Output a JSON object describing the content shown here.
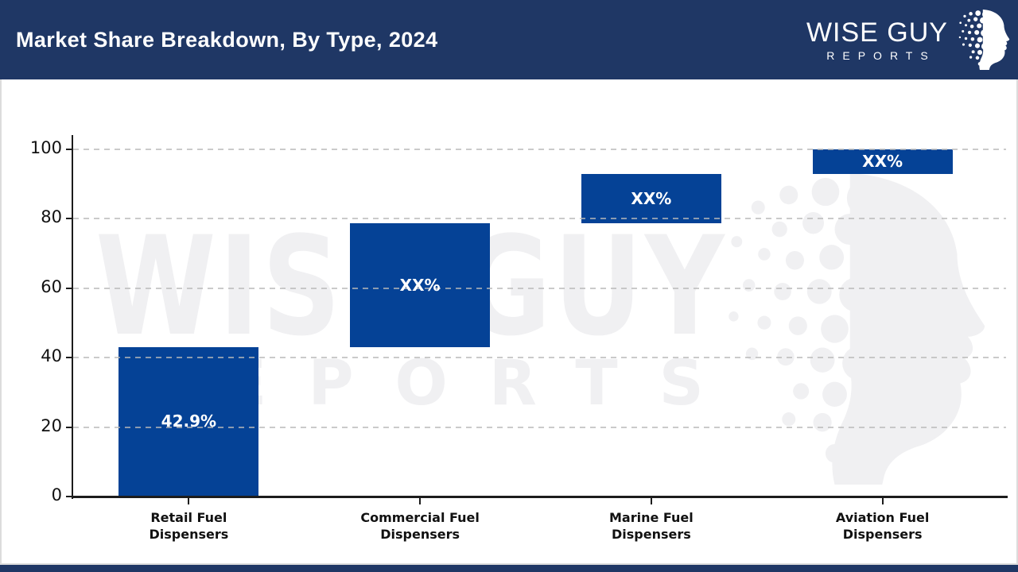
{
  "header": {
    "title": "Market Share Breakdown, By Type, 2024",
    "logo": {
      "name": "WISE GUY",
      "tagline": "REPORTS"
    }
  },
  "watermark": {
    "line1": "WISE GUY",
    "line2": "REPORTS"
  },
  "colors": {
    "header_bg": "#1f3765",
    "footer_bg": "#1f3765",
    "bar_fill": "#054296",
    "bar_label_text": "#ffffff",
    "axis": "#1c1c1c",
    "gridline": "#d9d9d9",
    "watermark": "#f0f0f2",
    "title_text": "#ffffff",
    "page_bg": "#ffffff"
  },
  "chart_data": {
    "type": "bar",
    "subtype": "waterfall",
    "title": "Market Share Breakdown, By Type, 2024",
    "categories": [
      "Retail Fuel Dispensers",
      "Commercial Fuel Dispensers",
      "Marine Fuel Dispensers",
      "Aviation Fuel Dispensers"
    ],
    "category_label_lines": [
      [
        "Retail Fuel",
        "Dispensers"
      ],
      [
        "Commercial Fuel",
        "Dispensers"
      ],
      [
        "Marine Fuel",
        "Dispensers"
      ],
      [
        "Aviation Fuel",
        "Dispensers"
      ]
    ],
    "segments": [
      {
        "start": 0,
        "end": 42.9,
        "label": "42.9%"
      },
      {
        "start": 42.9,
        "end": 78.6,
        "label": "XX%"
      },
      {
        "start": 78.6,
        "end": 92.9,
        "label": "XX%"
      },
      {
        "start": 92.9,
        "end": 100,
        "label": "XX%"
      }
    ],
    "values_pct": [
      42.9,
      35.7,
      14.3,
      7.1
    ],
    "yticks": [
      0,
      20,
      40,
      60,
      80,
      100
    ],
    "ylim": [
      0,
      105
    ],
    "xlabel": "",
    "ylabel": "",
    "grid": "horizontal-dashed",
    "legend": "none"
  }
}
